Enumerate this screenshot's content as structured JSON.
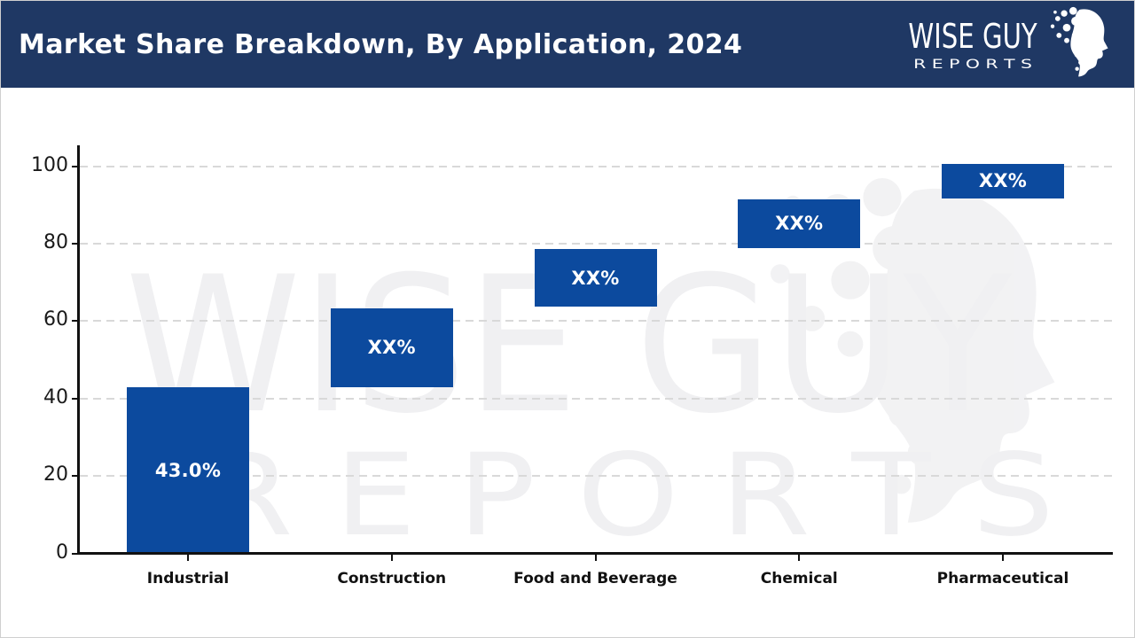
{
  "header": {
    "title": "Market Share Breakdown, By Application, 2024",
    "logo": {
      "line1": "WISE GUY",
      "line2": "R E P O R T S"
    }
  },
  "watermark": {
    "line1": "WISE GUY",
    "line2": "R E P O R T S"
  },
  "chart_data": {
    "type": "bar",
    "subtype": "waterfall",
    "title": "Market Share Breakdown, By Application, 2024",
    "categories": [
      "Industrial",
      "Construction",
      "Food and Beverage",
      "Chemical",
      "Pharmaceutical"
    ],
    "segments": [
      {
        "category": "Industrial",
        "start": 0,
        "end": 43.0,
        "label": "43.0%"
      },
      {
        "category": "Construction",
        "start": 43.0,
        "end": 63.3,
        "label": "XX%"
      },
      {
        "category": "Food and Beverage",
        "start": 63.7,
        "end": 78.6,
        "label": "XX%"
      },
      {
        "category": "Chemical",
        "start": 78.9,
        "end": 91.5,
        "label": "XX%"
      },
      {
        "category": "Pharmaceutical",
        "start": 91.7,
        "end": 100.6,
        "label": "XX%"
      }
    ],
    "xlabel": "",
    "ylabel": "",
    "ylim": [
      0,
      100
    ],
    "yticks": [
      0,
      20,
      40,
      60,
      80,
      100
    ],
    "grid": "horizontal dashed",
    "legend": "none",
    "bar_color": "#0c4a9e",
    "bar_label_color": "#ffffff"
  },
  "colors": {
    "header_bg": "#1f3864",
    "bar": "#0c4a9e",
    "grid": "#d9d9d9",
    "axis": "#111111",
    "watermark": "#f0f0f2"
  }
}
